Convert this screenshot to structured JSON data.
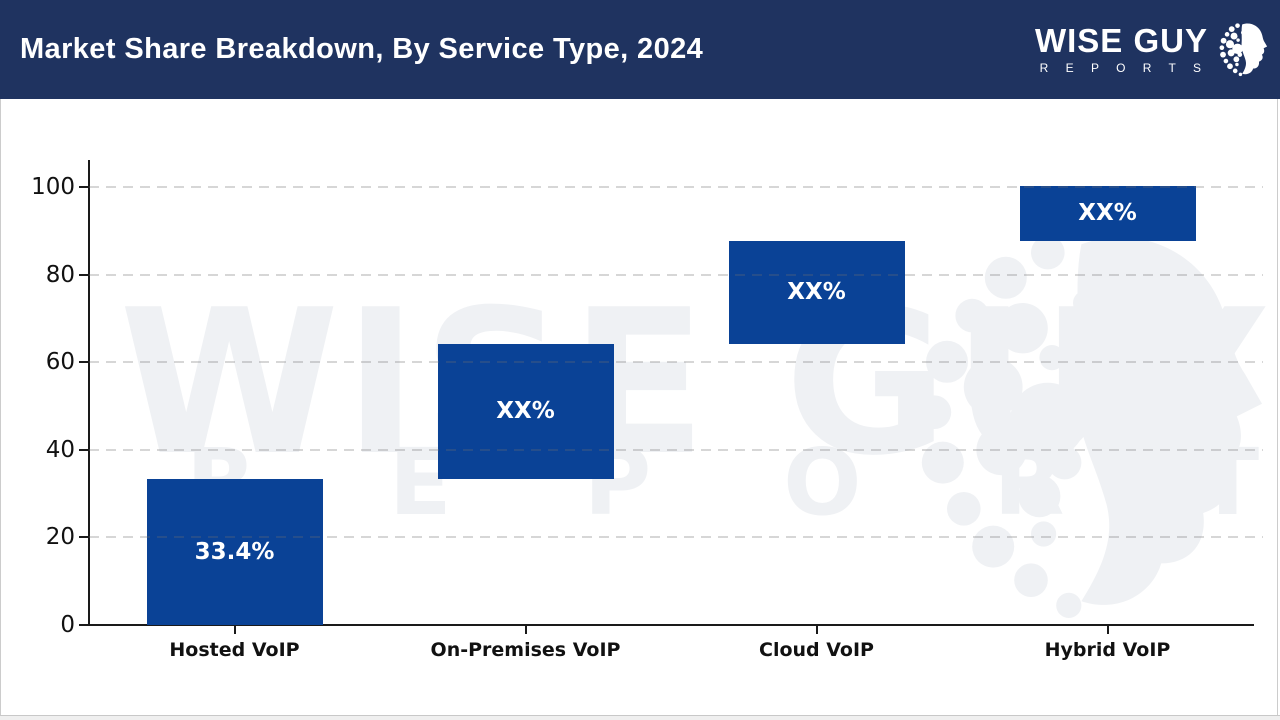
{
  "header": {
    "title": "Market Share Breakdown, By Service Type, 2024",
    "logo": {
      "brand": "WISE GUY",
      "sub": "R E P O R T S"
    }
  },
  "watermark": {
    "brand": "WISE GUY",
    "sub": "R E P O R T S"
  },
  "chart_data": {
    "type": "bar",
    "subtype": "waterfall",
    "title": "Market Share Breakdown, By Service Type, 2024",
    "xlabel": "",
    "ylabel": "",
    "categories": [
      "Hosted VoIP",
      "On-Premises VoIP",
      "Cloud VoIP",
      "Hybrid VoIP"
    ],
    "unit": "percent",
    "segments": [
      {
        "category": "Hosted VoIP",
        "start": 0,
        "end": 33.4,
        "label": "33.4%"
      },
      {
        "category": "On-Premises VoIP",
        "start": 33.4,
        "end": 64.2,
        "label": "XX%"
      },
      {
        "category": "Cloud VoIP",
        "start": 64.2,
        "end": 87.7,
        "label": "XX%"
      },
      {
        "category": "Hybrid VoIP",
        "start": 87.7,
        "end": 100.2,
        "label": "XX%"
      }
    ],
    "yticks": [
      0,
      20,
      40,
      60,
      80,
      100
    ],
    "ylim": [
      0,
      105
    ],
    "grid": {
      "horizontal": true,
      "style": "dashed"
    },
    "legend": null,
    "colors": {
      "bar": "#0A4296",
      "bar_label": "#FFFFFF",
      "header_bg": "#1F3360",
      "grid": "#D9D9D9",
      "axis": "#1A1A1A",
      "tick_label": "#111111",
      "watermark": "#EFF1F4",
      "page_bg": "#FFFFFF",
      "border": "#C9C9C9"
    }
  }
}
